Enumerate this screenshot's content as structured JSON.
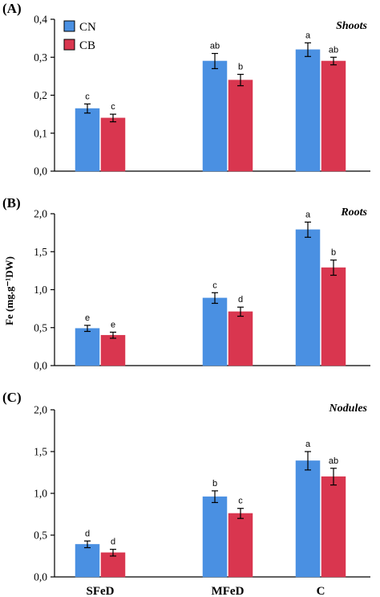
{
  "shared_ylabel": "Fe (mg.g⁻¹DW)",
  "colors": {
    "CN": "#4a90e2",
    "CB": "#d9364f"
  },
  "legend": [
    "CN",
    "CB"
  ],
  "chart_data": [
    {
      "type": "bar",
      "panel": "(A)",
      "title": "Shoots",
      "categories": [
        "SFeD",
        "MFeD",
        "C"
      ],
      "ylim": [
        0,
        0.4
      ],
      "yticks": [
        "0,0",
        "0,1",
        "0,2",
        "0,3",
        "0,4"
      ],
      "series": [
        {
          "name": "CN",
          "values": [
            0.165,
            0.29,
            0.32
          ],
          "errors": [
            0.012,
            0.02,
            0.018
          ],
          "labels": [
            "c",
            "ab",
            "a"
          ]
        },
        {
          "name": "CB",
          "values": [
            0.14,
            0.24,
            0.29
          ],
          "errors": [
            0.01,
            0.015,
            0.01
          ],
          "labels": [
            "c",
            "b",
            "ab"
          ]
        }
      ]
    },
    {
      "type": "bar",
      "panel": "(B)",
      "title": "Roots",
      "categories": [
        "SFeD",
        "MFeD",
        "C"
      ],
      "ylim": [
        0,
        2.0
      ],
      "yticks": [
        "0,0",
        "0,5",
        "1,0",
        "1,5",
        "2,0"
      ],
      "series": [
        {
          "name": "CN",
          "values": [
            0.49,
            0.89,
            1.79
          ],
          "errors": [
            0.04,
            0.07,
            0.1
          ],
          "labels": [
            "e",
            "c",
            "a"
          ]
        },
        {
          "name": "CB",
          "values": [
            0.4,
            0.71,
            1.29
          ],
          "errors": [
            0.04,
            0.06,
            0.1
          ],
          "labels": [
            "e",
            "d",
            "b"
          ]
        }
      ]
    },
    {
      "type": "bar",
      "panel": "(C)",
      "title": "Nodules",
      "categories": [
        "SFeD",
        "MFeD",
        "C"
      ],
      "ylim": [
        0,
        2.0
      ],
      "yticks": [
        "0,0",
        "0,5",
        "1,0",
        "1,5",
        "2,0"
      ],
      "series": [
        {
          "name": "CN",
          "values": [
            0.39,
            0.96,
            1.39
          ],
          "errors": [
            0.04,
            0.07,
            0.11
          ],
          "labels": [
            "d",
            "b",
            "a"
          ]
        },
        {
          "name": "CB",
          "values": [
            0.29,
            0.76,
            1.2
          ],
          "errors": [
            0.04,
            0.06,
            0.1
          ],
          "labels": [
            "d",
            "c",
            "ab"
          ]
        }
      ]
    }
  ]
}
